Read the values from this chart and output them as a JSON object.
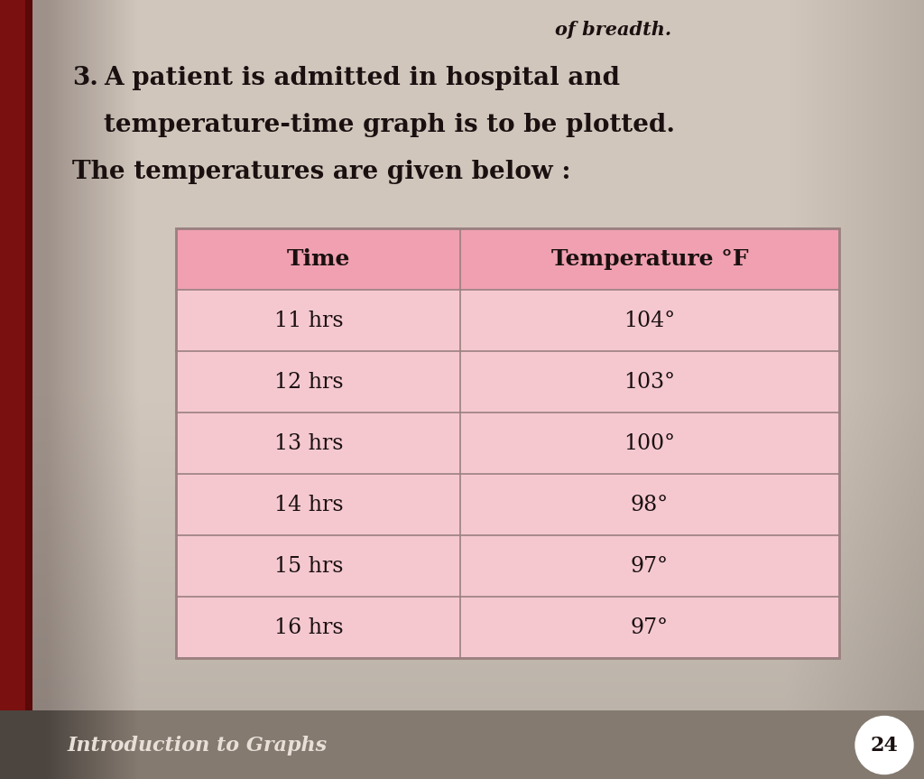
{
  "question_number": "3.",
  "question_text_line1": "A patient is admitted in hospital and",
  "question_text_line2": "temperature-time graph is to be plotted.",
  "question_text_line3": "The temperatures are given below :",
  "col1_header": "Time",
  "col2_header": "Temperature °F",
  "rows": [
    [
      "11 hrs",
      "104°"
    ],
    [
      "12 hrs",
      "103°"
    ],
    [
      "13 hrs",
      "100°"
    ],
    [
      "14 hrs",
      "98°"
    ],
    [
      "15 hrs",
      "97°"
    ],
    [
      "16 hrs",
      "97°"
    ]
  ],
  "header_bg": "#f0a0b0",
  "cell_bg": "#f5c8d0",
  "border_color": "#9a8080",
  "text_color": "#1a1010",
  "page_bg_left": "#b0a8a0",
  "page_bg_center": "#d8d2cc",
  "page_bg_right": "#c8c0b8",
  "footer_bg_left": "#706860",
  "footer_bg_center": "#908880",
  "footer_text": "Introduction to Graphs",
  "page_number": "24",
  "top_text": "of breadth.",
  "spine_color": "#7a1010",
  "font_size_question": 20,
  "font_size_header": 18,
  "font_size_cell": 17,
  "font_size_footer": 16,
  "font_size_top": 15
}
